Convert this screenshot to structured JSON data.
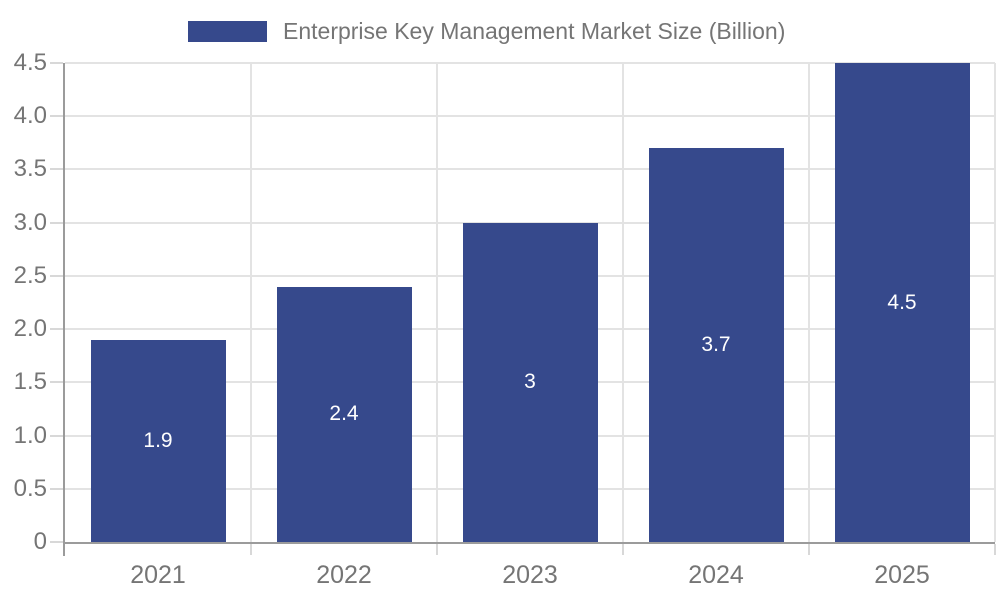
{
  "chart_data": {
    "type": "bar",
    "title": "Enterprise Key Management Market Size (Billion)",
    "legend": {
      "label": "Enterprise Key Management Market Size (Billion)",
      "position": "top-center"
    },
    "categories": [
      "2021",
      "2022",
      "2023",
      "2024",
      "2025"
    ],
    "values": [
      1.9,
      2.4,
      3,
      3.7,
      4.5
    ],
    "value_labels": [
      "1.9",
      "2.4",
      "3",
      "3.7",
      "4.5"
    ],
    "xlabel": "",
    "ylabel": "",
    "ylim": [
      0,
      4.5
    ],
    "ytick_step": 0.5,
    "ytick_labels": [
      "0",
      "0.5",
      "1.0",
      "1.5",
      "2.0",
      "2.5",
      "3.0",
      "3.5",
      "4.0",
      "4.5"
    ],
    "grid": true,
    "colors": {
      "bar": "#36498C",
      "grid": "#E3E3E3",
      "axis": "#9B9B9B",
      "tick": "#D8D8D8",
      "text": "#757575",
      "bar_label": "#FFFFFF",
      "background": "#FFFFFF"
    }
  }
}
